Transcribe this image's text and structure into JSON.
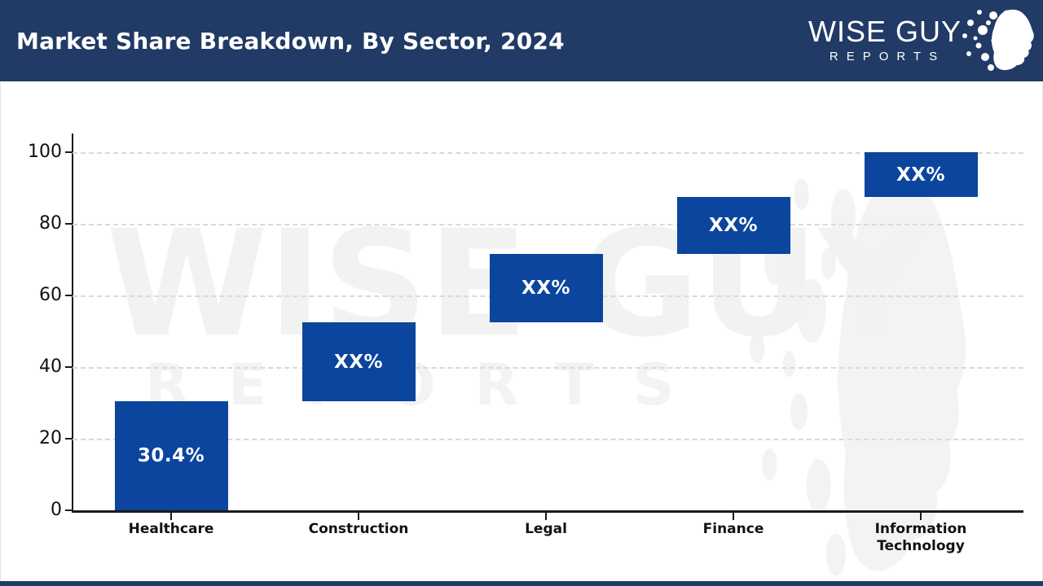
{
  "header": {
    "title": "Market Share Breakdown, By Sector, 2024",
    "logo": {
      "line1": "WISE GUY",
      "line2": "REPORTS"
    }
  },
  "watermark": {
    "line1": "WISE GUY",
    "line2": "REPORTS"
  },
  "colors": {
    "header_bg": "#213A66",
    "bar": "#0B459E",
    "bar_label": "#ffffff",
    "gridline": "#d9d9d9",
    "axis": "#1a1a1a",
    "tick_label": "#111111",
    "watermark": "#f2f2f2"
  },
  "chart_data": {
    "type": "bar",
    "variant": "waterfall-floating-bars",
    "title": "Market Share Breakdown, By Sector, 2024",
    "categories": [
      "Healthcare",
      "Construction",
      "Legal",
      "Finance",
      "Information Technology"
    ],
    "segments": [
      {
        "category": "Healthcare",
        "start": 0,
        "end": 30.4,
        "label": "30.4%"
      },
      {
        "category": "Construction",
        "start": 30.4,
        "end": 52.5,
        "label": "XX%"
      },
      {
        "category": "Legal",
        "start": 52.5,
        "end": 71.5,
        "label": "XX%"
      },
      {
        "category": "Finance",
        "start": 71.5,
        "end": 87.5,
        "label": "XX%"
      },
      {
        "category": "Information Technology",
        "start": 87.5,
        "end": 100,
        "label": "XX%"
      }
    ],
    "xlabel": "",
    "ylabel": "",
    "ylim": [
      0,
      105
    ],
    "yticks": [
      0,
      20,
      40,
      60,
      80,
      100
    ],
    "grid": "dashed-horizontal",
    "legend": "none"
  }
}
